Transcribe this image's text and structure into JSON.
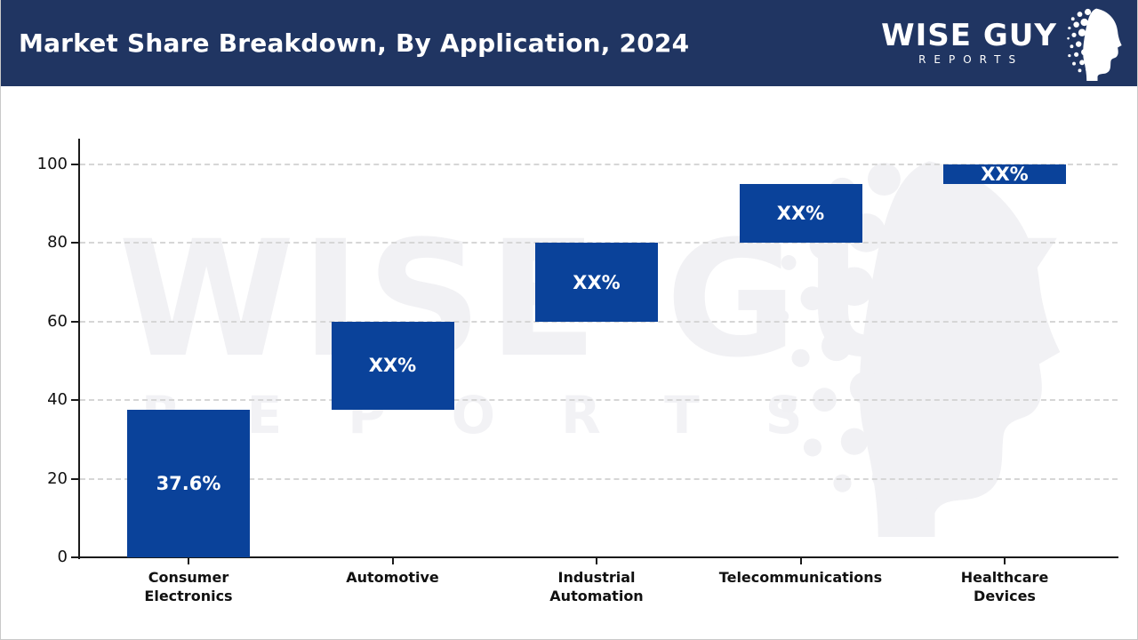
{
  "header": {
    "title": "Market Share Breakdown, By Application, 2024",
    "logo": {
      "line1": "WISE GUY",
      "line2": "REPORTS"
    },
    "bg_color": "#203562"
  },
  "watermark": {
    "line1": "WISE GUY",
    "line2": "REPORTS"
  },
  "chart_data": {
    "type": "bar",
    "variant": "waterfall",
    "title": "Market Share Breakdown, By Application, 2024",
    "categories": [
      "Consumer Electronics",
      "Automotive",
      "Industrial Automation",
      "Telecommunications",
      "Healthcare Devices"
    ],
    "category_label_lines": [
      [
        "Consumer",
        "Electronics"
      ],
      [
        "Automotive"
      ],
      [
        "Industrial",
        "Automation"
      ],
      [
        "Telecommunications"
      ],
      [
        "Healthcare",
        "Devices"
      ]
    ],
    "segments": [
      {
        "category": "Consumer Electronics",
        "start": 0,
        "end": 37.6,
        "value_label": "37.6%"
      },
      {
        "category": "Automotive",
        "start": 37.6,
        "end": 60,
        "value_label": "XX%"
      },
      {
        "category": "Industrial Automation",
        "start": 60,
        "end": 80,
        "value_label": "XX%"
      },
      {
        "category": "Telecommunications",
        "start": 80,
        "end": 95,
        "value_label": "XX%"
      },
      {
        "category": "Healthcare Devices",
        "start": 95,
        "end": 100,
        "value_label": "XX%"
      }
    ],
    "yticks": [
      0,
      20,
      40,
      60,
      80,
      100
    ],
    "ylim": [
      0,
      105.7
    ],
    "xlabel": "",
    "ylabel": "",
    "grid": "horizontal-dashed",
    "legend": "none",
    "bar_color": "#0a429a",
    "value_label_color": "#ffffff",
    "axis_color": "#1a1a1a",
    "gridline_color": "#d6d6d6"
  }
}
